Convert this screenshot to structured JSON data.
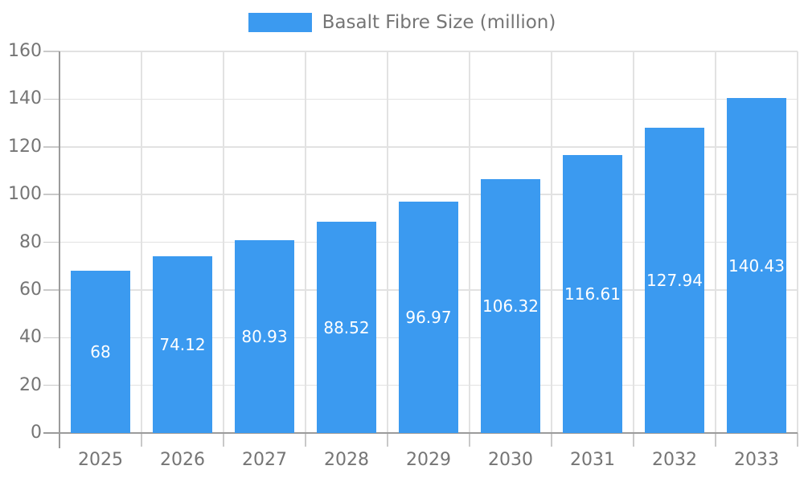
{
  "chart_data": {
    "type": "bar",
    "title": "Basalt Fibre Size (million)",
    "categories": [
      "2025",
      "2026",
      "2027",
      "2028",
      "2029",
      "2030",
      "2031",
      "2032",
      "2033"
    ],
    "values": [
      68,
      74.12,
      80.93,
      88.52,
      96.97,
      106.32,
      116.61,
      127.94,
      140.43
    ],
    "value_labels": [
      "68",
      "74.12",
      "80.93",
      "88.52",
      "96.97",
      "106.32",
      "116.61",
      "127.94",
      "140.43"
    ],
    "xlabel": "",
    "ylabel": "",
    "ylim": [
      0,
      160
    ],
    "ytick_step": 20,
    "ytick_labels": [
      "0",
      "20",
      "40",
      "60",
      "80",
      "100",
      "120",
      "140",
      "160"
    ],
    "grid": true,
    "value_label_position": "middle-of-bar",
    "legend_position": "top-center"
  },
  "legend": {
    "label": "Basalt Fibre Size (million)"
  },
  "colors": {
    "bar": "#3b9af0",
    "axis": "#9b9b9b",
    "grid": "#e2e2e2",
    "tick": "#c9c9c9",
    "text": "#757575",
    "value_label": "#ffffff",
    "background": "#ffffff"
  }
}
